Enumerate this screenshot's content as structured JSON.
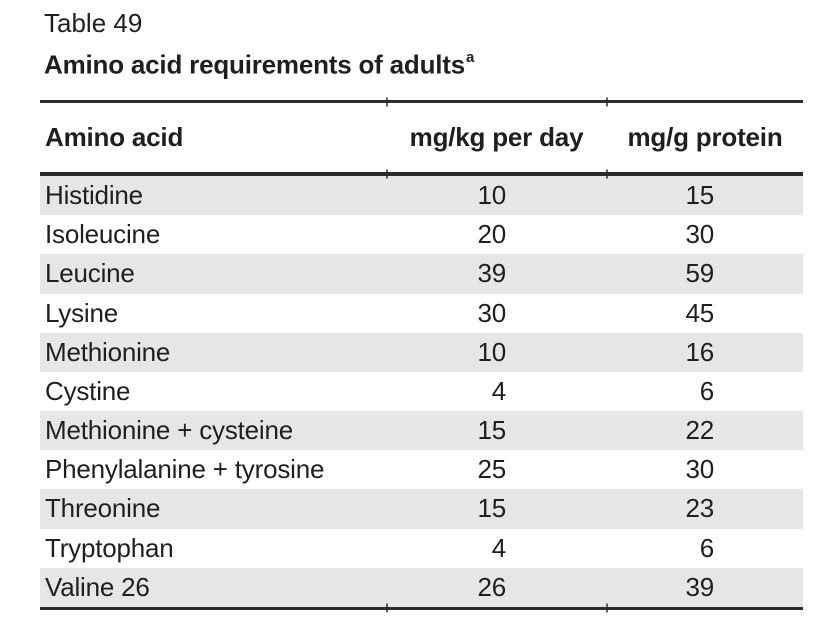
{
  "caption": {
    "label": "Table 49",
    "title": "Amino acid requirements of adults",
    "footnote_marker": "a"
  },
  "table": {
    "columns": [
      "Amino acid",
      "mg/kg per day",
      "mg/g protein"
    ],
    "rows": [
      {
        "name": "Histidine",
        "per_kg": "10",
        "per_g": "15"
      },
      {
        "name": "Isoleucine",
        "per_kg": "20",
        "per_g": "30"
      },
      {
        "name": "Leucine",
        "per_kg": "39",
        "per_g": "59"
      },
      {
        "name": "Lysine",
        "per_kg": "30",
        "per_g": "45"
      },
      {
        "name": "Methionine",
        "per_kg": "10",
        "per_g": "16"
      },
      {
        "name": "Cystine",
        "per_kg": "4",
        "per_g": "6"
      },
      {
        "name": "Methionine + cysteine",
        "per_kg": "15",
        "per_g": "22"
      },
      {
        "name": "Phenylalanine + tyrosine",
        "per_kg": "25",
        "per_g": "30"
      },
      {
        "name": "Threonine",
        "per_kg": "15",
        "per_g": "23"
      },
      {
        "name": "Tryptophan",
        "per_kg": "4",
        "per_g": "6"
      },
      {
        "name": "Valine 26",
        "per_kg": "26",
        "per_g": "39"
      }
    ]
  },
  "colors": {
    "row_shade": "#e6e6e6",
    "rule": "#2c2c2c",
    "text": "#1f1f1f",
    "background": "#ffffff"
  }
}
